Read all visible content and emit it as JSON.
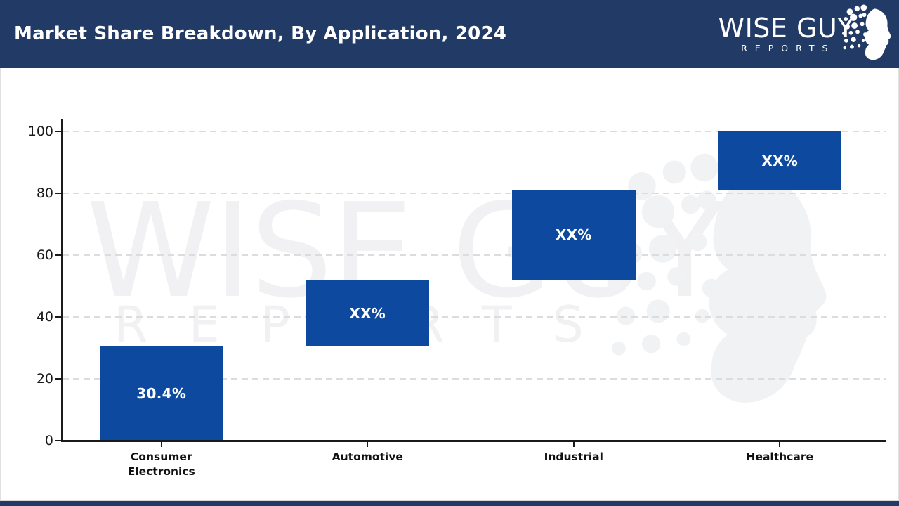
{
  "header": {
    "title": "Market Share Breakdown, By Application, 2024",
    "logo": {
      "name": "WISE GUY",
      "subtitle": "REPORTS"
    }
  },
  "watermark": {
    "line1": "WISE GUY",
    "line2": "REPORTS"
  },
  "colors": {
    "header_bg": "#223A66",
    "bar": "#0D4A9F",
    "bar_label": "#FFFFFF",
    "axis": "#1A1A1A",
    "gridline": "#DCDCDC",
    "watermark": "#F1F1F3",
    "footer_strip": "#223A66"
  },
  "chart_data": {
    "type": "bar",
    "subtype": "waterfall-stacked",
    "title": "Market Share Breakdown, By Application, 2024",
    "categories": [
      "Consumer Electronics",
      "Automotive",
      "Industrial",
      "Healthcare"
    ],
    "segments": [
      {
        "category_label": "Consumer\nElectronics",
        "start": 0,
        "end": 30.4,
        "label": "30.4%"
      },
      {
        "category_label": "Automotive",
        "start": 30.4,
        "end": 51.9,
        "label": "XX%"
      },
      {
        "category_label": "Industrial",
        "start": 51.9,
        "end": 81.1,
        "label": "XX%"
      },
      {
        "category_label": "Healthcare",
        "start": 81.1,
        "end": 100,
        "label": "XX%"
      }
    ],
    "bar_labels": [
      "30.4%",
      "XX%",
      "XX%",
      "XX%"
    ],
    "yticks": [
      0,
      20,
      40,
      60,
      80,
      100
    ],
    "ylim": [
      0,
      104
    ],
    "xlabel": "",
    "ylabel": "",
    "grid": "dashed-horizontal",
    "legend": "none"
  }
}
